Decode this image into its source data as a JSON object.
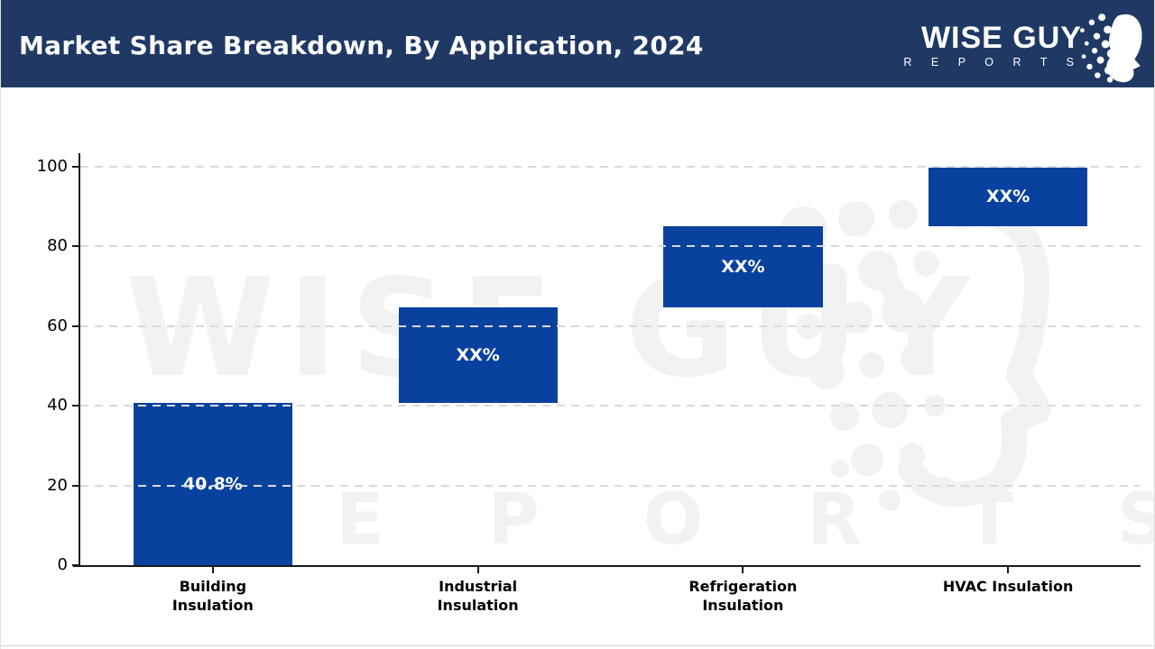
{
  "header": {
    "title": "Market Share Breakdown, By Application, 2024",
    "logo": {
      "line1": "WISE GUY",
      "line2": "R E P O R T S"
    }
  },
  "watermark": {
    "line1": "WISE GUY",
    "line2": "R E P O R T S"
  },
  "chart_data": {
    "type": "bar",
    "subtype": "floating-waterfall-segments",
    "title": "Market Share Breakdown, By Application, 2024",
    "categories": [
      "Building Insulation",
      "Industrial Insulation",
      "Refrigeration Insulation",
      "HVAC Insulation"
    ],
    "category_label_lines": [
      [
        "Building",
        "Insulation"
      ],
      [
        "Industrial",
        "Insulation"
      ],
      [
        "Refrigeration",
        "Insulation"
      ],
      [
        "HVAC Insulation"
      ]
    ],
    "series": [
      {
        "name": "Market share",
        "segments": [
          {
            "category": "Building Insulation",
            "start": 0,
            "end": 40.8,
            "label": "40.8%"
          },
          {
            "category": "Industrial Insulation",
            "start": 40.8,
            "end": 64.7,
            "label": "XX%"
          },
          {
            "category": "Refrigeration Insulation",
            "start": 64.7,
            "end": 85.1,
            "label": "XX%"
          },
          {
            "category": "HVAC Insulation",
            "start": 85.1,
            "end": 99.8,
            "label": "XX%"
          }
        ]
      }
    ],
    "yticks": [
      0,
      20,
      40,
      60,
      80,
      100
    ],
    "ylim": [
      0,
      103.4
    ],
    "xlabel": "",
    "ylabel": "",
    "grid": "horizontal dashed, drawn above bars",
    "legend_position": "none",
    "bar_color": "#08429e",
    "bar_label_color": "#ffffff"
  },
  "colors": {
    "header_bg": "#1f3864",
    "bar": "#08429e",
    "grid": "#d9d9d9",
    "axis": "#1a1a1a",
    "watermark": "#f2f2f2",
    "frame_line": "#d4d4d4"
  }
}
